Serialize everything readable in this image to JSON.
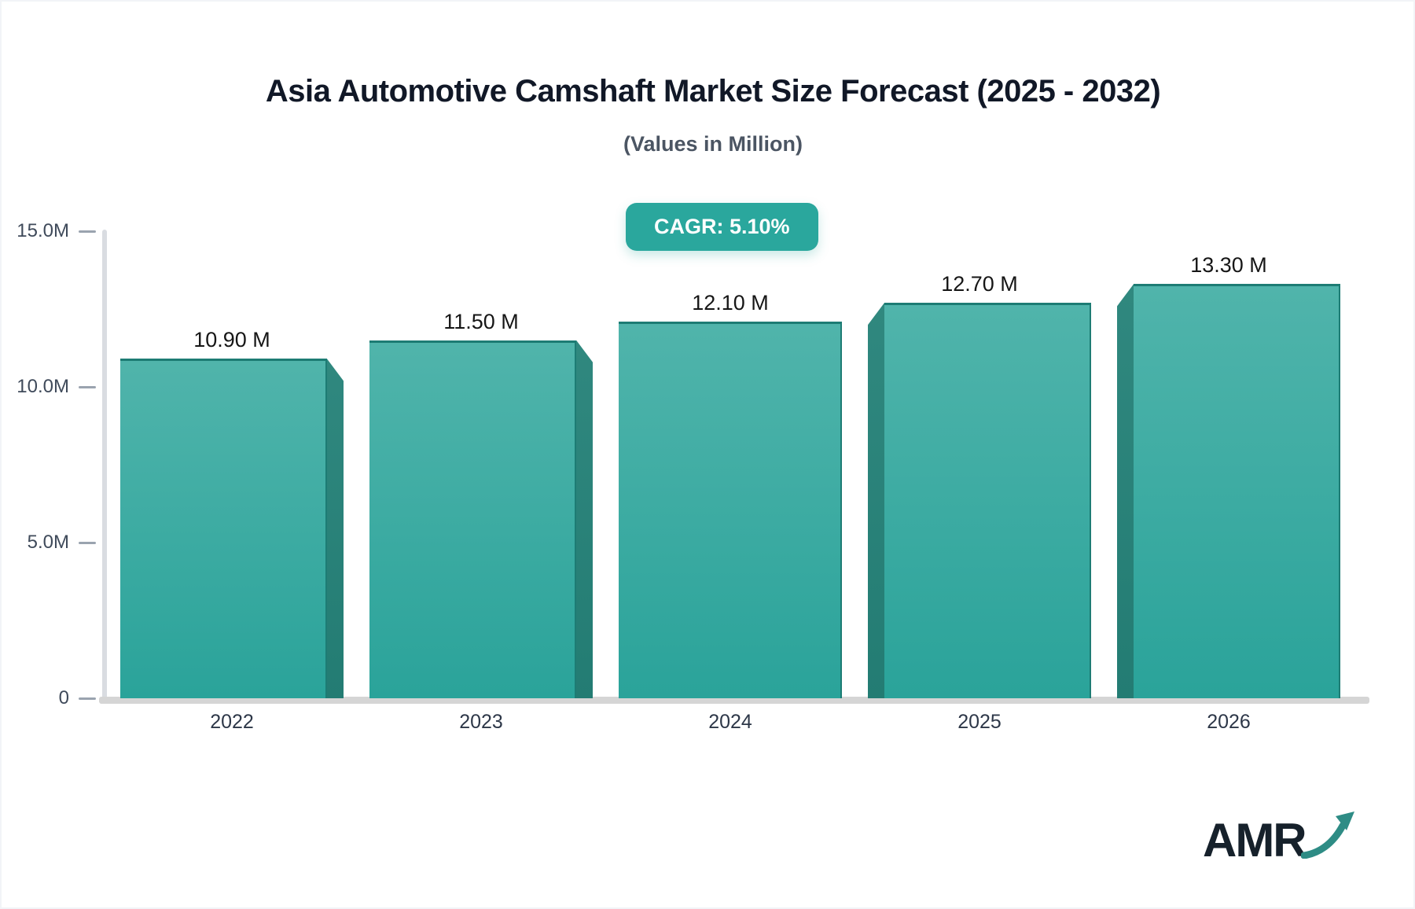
{
  "header": {
    "title": "Asia Automotive Camshaft Market Size Forecast (2025 - 2032)",
    "subtitle": "(Values in Million)",
    "cagr_badge": "CAGR: 5.10%"
  },
  "chart_data": {
    "type": "bar",
    "title": "Asia Automotive Camshaft Market Size Forecast (2025 - 2032)",
    "subtitle": "(Values in Million)",
    "cagr_percent": "5.10%",
    "unit": "Million",
    "categories": [
      "2022",
      "2023",
      "2024",
      "2025",
      "2026"
    ],
    "values": [
      10.9,
      11.5,
      12.1,
      12.7,
      13.3
    ],
    "value_labels": [
      "10.90 M",
      "11.50 M",
      "12.10 M",
      "12.70 M",
      "13.30 M"
    ],
    "y_ticks": [
      {
        "label": "15.0M",
        "value": 15
      },
      {
        "label": "10.0M",
        "value": 10
      },
      {
        "label": "5.0M",
        "value": 5
      },
      {
        "label": "0",
        "value": 0
      }
    ],
    "ylim": [
      0,
      15
    ],
    "grid": false,
    "legend": false,
    "bar_3d_sides": [
      "right",
      "right",
      "none",
      "left",
      "left"
    ]
  },
  "colors": {
    "accent": "#2aa79d",
    "bar_top": "#50b4ab",
    "bar_bottom": "#2aa39a",
    "bar_border": "#1d7c74",
    "bar_side": "#2b837c",
    "axis_line": "#d9dce1",
    "baseline": "#d5d5d5",
    "tick": "#9aa3af",
    "logo_text": "#16212b",
    "logo_arrow": "#2e8c85"
  },
  "branding": {
    "logo_text": "AMR",
    "logo_arrow_icon": "trend-up-arrow-icon"
  }
}
